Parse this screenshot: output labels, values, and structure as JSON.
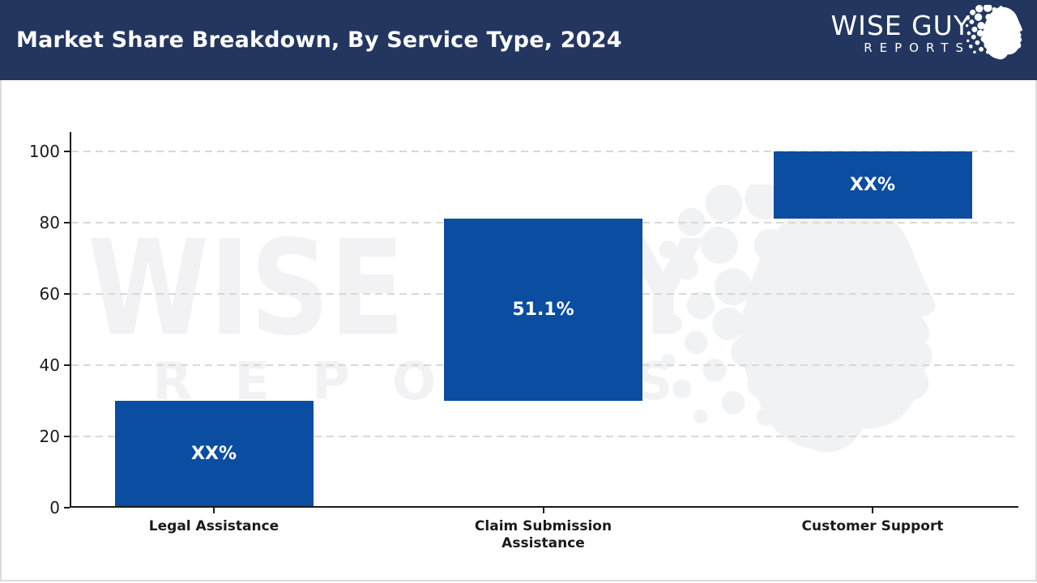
{
  "header": {
    "title": "Market Share Breakdown, By Service Type, 2024",
    "logo_line1": "WISE GUY",
    "logo_line2": "REPORTS"
  },
  "watermark": {
    "line1": "WISE GUY",
    "line2": "REPORTS"
  },
  "chart_data": {
    "type": "bar",
    "variant": "waterfall",
    "title": "Market Share Breakdown, By Service Type, 2024",
    "categories": [
      "Legal Assistance",
      "Claim Submission\nAssistance",
      "Customer Support"
    ],
    "segments": [
      {
        "category": "Legal Assistance",
        "start": 0,
        "end": 30,
        "label": "XX%"
      },
      {
        "category": "Claim Submission Assistance",
        "start": 30,
        "end": 81.1,
        "label": "51.1%"
      },
      {
        "category": "Customer Support",
        "start": 81.1,
        "end": 100,
        "label": "XX%"
      }
    ],
    "xlabel": "",
    "ylabel": "",
    "ylim": [
      0,
      100
    ],
    "yticks": [
      0,
      20,
      40,
      60,
      80,
      100
    ],
    "grid": "horizontal-dashed",
    "legend": "none",
    "colors": {
      "bar": "#0b4da1",
      "bar_label": "#ffffff",
      "axis": "#1a1a1a",
      "grid": "#d8d8d8",
      "header_bg": "#223660",
      "watermark": "#f2f2f4"
    }
  }
}
